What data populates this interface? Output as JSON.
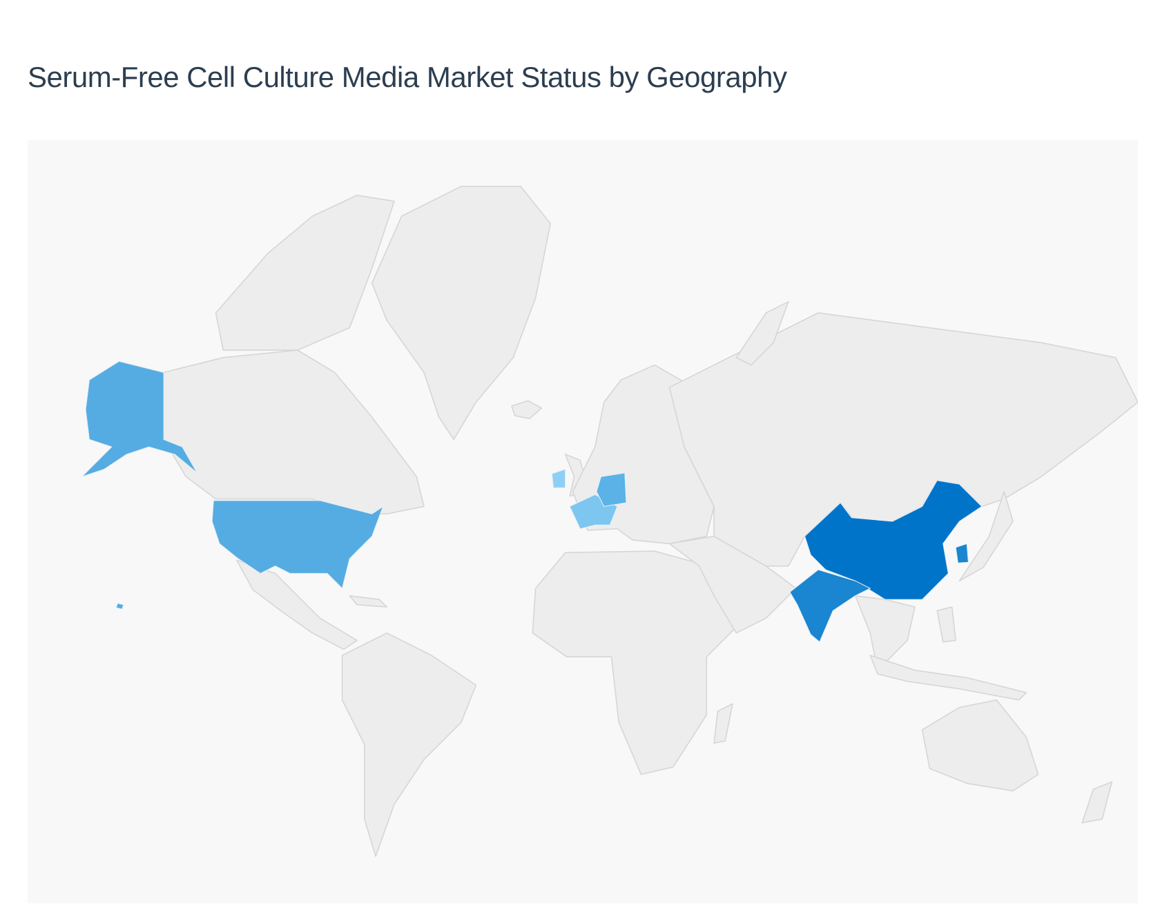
{
  "title": "Serum-Free Cell Culture Media Market Status by Geography",
  "map": {
    "type": "choropleth",
    "land_color": "#ededed",
    "border_color": "#d6d6d6",
    "background_color": "#f8f8f8",
    "highlighted_regions": [
      {
        "name": "China",
        "color": "#0074c9",
        "level": "highest"
      },
      {
        "name": "India",
        "color": "#1a85d0",
        "level": "high"
      },
      {
        "name": "South Korea",
        "color": "#1a85d0",
        "level": "high"
      },
      {
        "name": "United States",
        "color": "#55ace2",
        "level": "medium"
      },
      {
        "name": "Germany",
        "color": "#5ab2e6",
        "level": "medium"
      },
      {
        "name": "France",
        "color": "#7cc6f0",
        "level": "low"
      },
      {
        "name": "Ireland",
        "color": "#8ed0f4",
        "level": "lowest"
      }
    ]
  }
}
